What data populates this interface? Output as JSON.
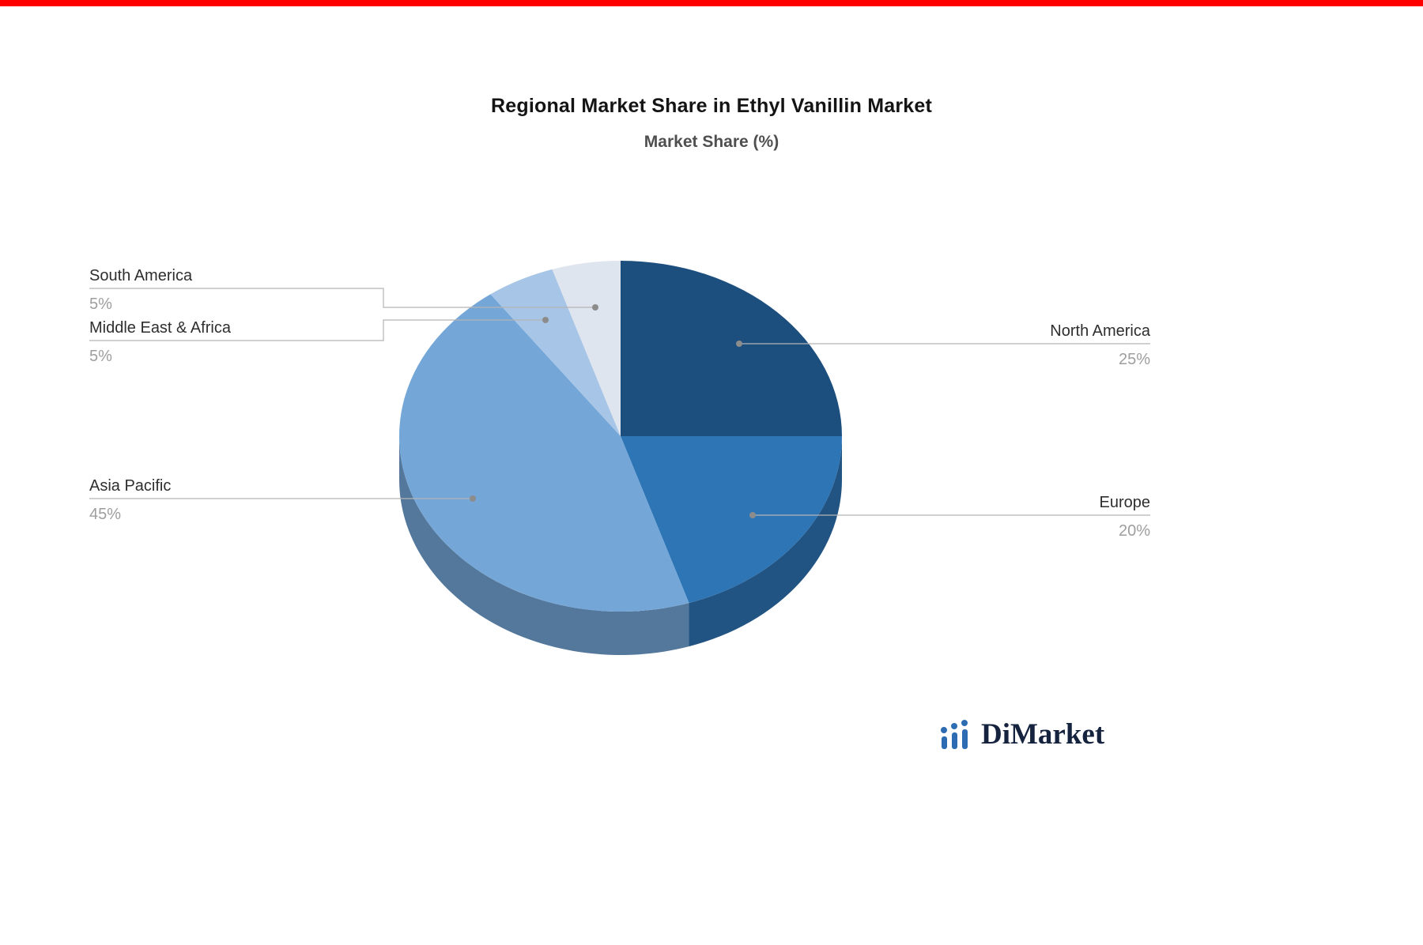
{
  "page": {
    "top_accent_color": "#ff0000",
    "background_color": "#ffffff"
  },
  "chart_data": {
    "type": "pie",
    "style": "3d",
    "title": "Regional Market Share in Ethyl Vanillin Market",
    "subtitle": "Market Share (%)",
    "unit": "%",
    "direction": "clockwise",
    "start_angle_deg": 0,
    "legend": "none",
    "labels": "connected-callouts",
    "slices": [
      {
        "label": "North America",
        "value": 25,
        "display": "25%",
        "color": "#1c4f7e"
      },
      {
        "label": "Europe",
        "value": 20,
        "display": "20%",
        "color": "#2e75b6"
      },
      {
        "label": "Asia Pacific",
        "value": 45,
        "display": "45%",
        "color": "#74a7d8"
      },
      {
        "label": "Middle East & Africa",
        "value": 5,
        "display": "5%",
        "color": "#a7c5e6"
      },
      {
        "label": "South America",
        "value": 5,
        "display": "5%",
        "color": "#dfe5ee"
      }
    ]
  },
  "branding": {
    "logo_text": "DiMarket",
    "logo_icon": "bar-chart-logo-icon",
    "icon_color": "#2d6cb3",
    "text_color": "#16233e"
  }
}
